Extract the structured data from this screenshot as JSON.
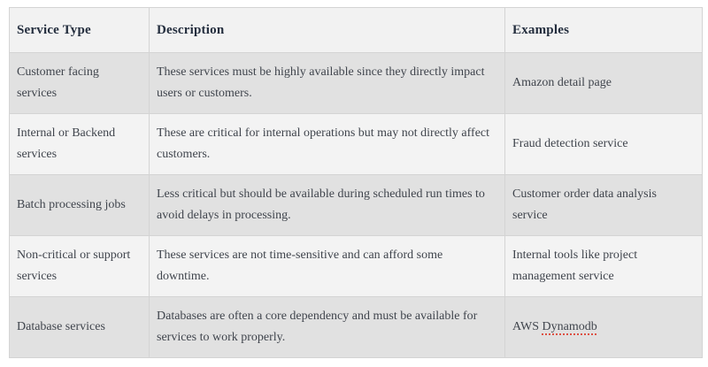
{
  "table": {
    "columns": [
      {
        "key": "service_type",
        "label": "Service Type"
      },
      {
        "key": "description",
        "label": "Description"
      },
      {
        "key": "examples",
        "label": "Examples"
      }
    ],
    "rows": [
      {
        "service_type": "Customer facing services",
        "description": "These services must be highly available since they directly impact users or customers.",
        "examples": [
          {
            "text": "Amazon detail page"
          }
        ]
      },
      {
        "service_type": "Internal or Backend services",
        "description": "These are critical for internal operations but may not directly affect customers.",
        "examples": [
          {
            "text": "Fraud detection service"
          }
        ]
      },
      {
        "service_type": "Batch processing jobs",
        "description": "Less critical but should be available during scheduled run times to avoid delays in processing.",
        "examples": [
          {
            "text": "Customer order data analysis service"
          }
        ]
      },
      {
        "service_type": "Non-critical or support services",
        "description": "These services are not time-sensitive and can afford some downtime.",
        "examples": [
          {
            "text": "Internal tools like project management service"
          }
        ]
      },
      {
        "service_type": "Database services",
        "description": "Databases are often a core dependency and must be available for services to work properly.",
        "examples": [
          {
            "text": "AWS "
          },
          {
            "text": "Dynamodb",
            "squiggle": true
          }
        ]
      }
    ]
  },
  "colors": {
    "header_background": "#f2f2f2",
    "row_light_background": "#f3f3f3",
    "row_dark_background": "#e1e1e1",
    "border": "#d4d4d4",
    "header_text": "#242e3e",
    "body_text": "#40454d",
    "spellcheck_underline": "#dd5144"
  }
}
